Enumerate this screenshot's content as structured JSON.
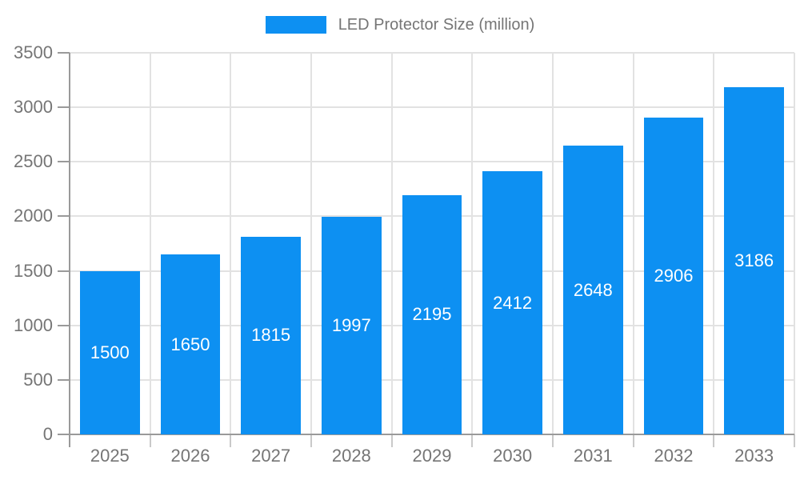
{
  "chart_data": {
    "type": "bar",
    "title": "LED Protector Size (million)",
    "legend_label": "LED Protector Size (million)",
    "legend_position": "top",
    "categories": [
      "2025",
      "2026",
      "2027",
      "2028",
      "2029",
      "2030",
      "2031",
      "2032",
      "2033"
    ],
    "values": [
      1500,
      1650,
      1815,
      1997,
      2195,
      2412,
      2648,
      2906,
      3186
    ],
    "xlabel": "",
    "ylabel": "",
    "ylim": [
      0,
      3500
    ],
    "yticks": [
      0,
      500,
      1000,
      1500,
      2000,
      2500,
      3000,
      3500
    ],
    "grid": true,
    "bar_color": "#0d90f2",
    "value_label_color": "#ffffff",
    "axis_color": "#9a9a9a",
    "grid_color": "#e2e2e2",
    "text_color": "#757575",
    "background_color": "#ffffff"
  }
}
